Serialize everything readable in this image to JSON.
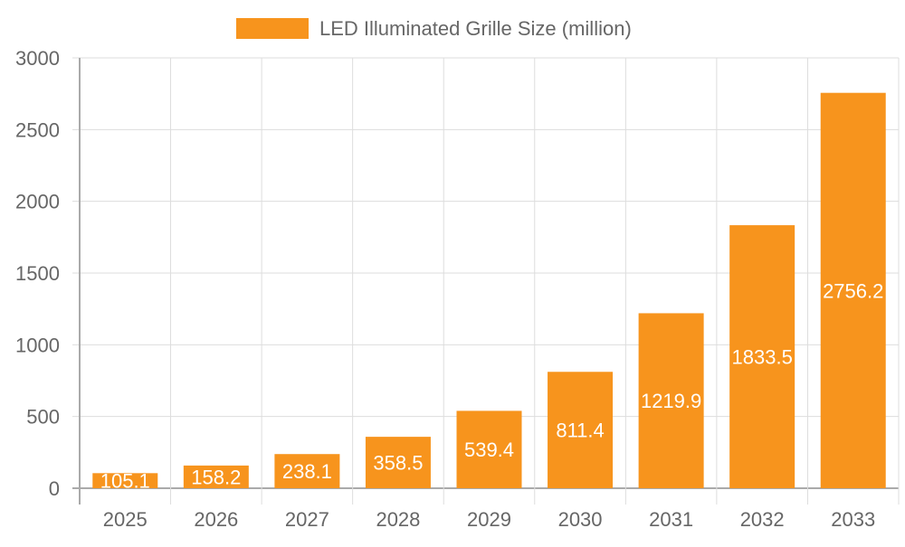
{
  "chart_data": {
    "type": "bar",
    "title": "",
    "xlabel": "",
    "ylabel": "",
    "categories": [
      "2025",
      "2026",
      "2027",
      "2028",
      "2029",
      "2030",
      "2031",
      "2032",
      "2033"
    ],
    "series": [
      {
        "name": "LED Illuminated Grille Size (million)",
        "values": [
          105.1,
          158.2,
          238.1,
          358.5,
          539.4,
          811.4,
          1219.9,
          1833.5,
          2756.2
        ],
        "color": "#F7941D"
      }
    ],
    "ylim": [
      0,
      3000
    ],
    "yticks": [
      0,
      500,
      1000,
      1500,
      2000,
      2500,
      3000
    ],
    "grid": true,
    "legend": "top",
    "data_labels": true,
    "data_label_color": "#ffffff"
  }
}
